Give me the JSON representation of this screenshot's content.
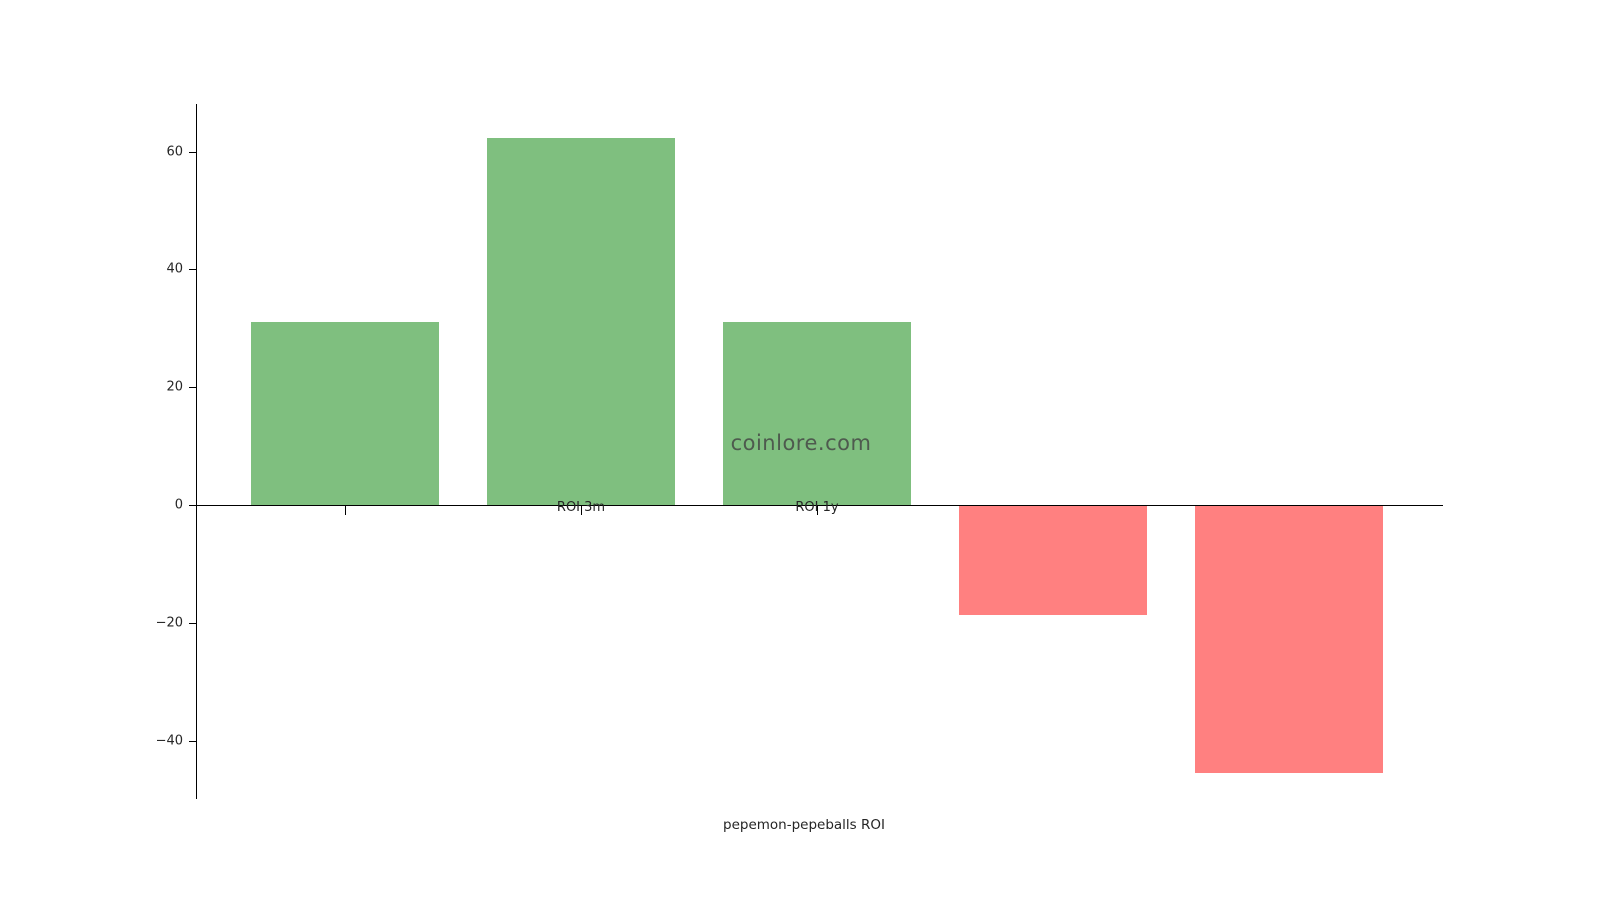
{
  "watermark": "coinlore.com",
  "colors": {
    "positive_bar": "#7fbf7f",
    "negative_bar": "#ff8080",
    "axis": "#000000",
    "text": "#262626",
    "background": "#ffffff"
  },
  "chart_data": {
    "type": "bar",
    "title": "pepemon-pepeballs ROI",
    "xlabel": "",
    "ylabel": "",
    "categories": [
      "",
      "ROI 3m",
      "ROI 1y",
      "",
      ""
    ],
    "values": [
      31,
      62.3,
      31,
      -18.5,
      -45.4
    ],
    "bar_colors": [
      "positive",
      "positive",
      "positive",
      "negative",
      "negative"
    ],
    "yticks": [
      60,
      40,
      20,
      0,
      -20,
      -40
    ],
    "ylim": [
      -50,
      68
    ],
    "xtick_marks_visible": [
      true,
      true,
      true,
      false,
      false
    ],
    "grid": false,
    "legend": "none",
    "watermark": "coinlore.com"
  }
}
